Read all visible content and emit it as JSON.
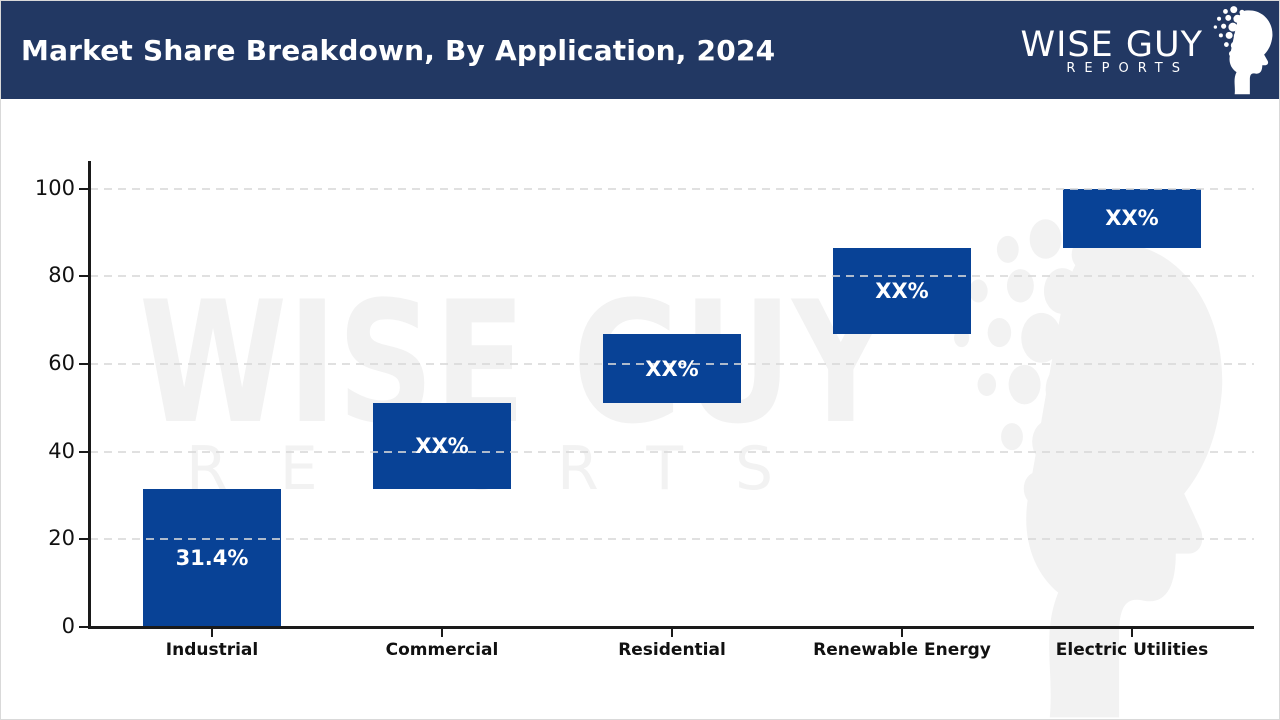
{
  "header": {
    "title": "Market Share Breakdown, By Application, 2024",
    "logo": {
      "line1": "WISE GUY",
      "line2": "REPORTS"
    }
  },
  "watermark": {
    "line1": "WISE GUY",
    "line2": "REPORTS"
  },
  "colors": {
    "header_bg": "#223863",
    "bar": "#084296",
    "gridline": "#d9d9d9"
  },
  "chart_data": {
    "type": "bar",
    "subtype": "waterfall",
    "title": "Market Share Breakdown, By Application, 2024",
    "categories": [
      "Industrial",
      "Commercial",
      "Residential",
      "Renewable Energy",
      "Electric Utilities"
    ],
    "segments": [
      {
        "category": "Industrial",
        "start": 0,
        "end": 31.4,
        "label": "31.4%"
      },
      {
        "category": "Commercial",
        "start": 31.4,
        "end": 51.1,
        "label": "XX%"
      },
      {
        "category": "Residential",
        "start": 51.1,
        "end": 66.8,
        "label": "XX%"
      },
      {
        "category": "Renewable Energy",
        "start": 66.8,
        "end": 86.4,
        "label": "XX%"
      },
      {
        "category": "Electric Utilities",
        "start": 86.4,
        "end": 100,
        "label": "XX%"
      }
    ],
    "yticks": [
      0,
      20,
      40,
      60,
      80,
      100
    ],
    "ylim": [
      0,
      106
    ],
    "xlabel": "",
    "ylabel": "",
    "grid": "horizontal-dashed",
    "legend": "none"
  }
}
